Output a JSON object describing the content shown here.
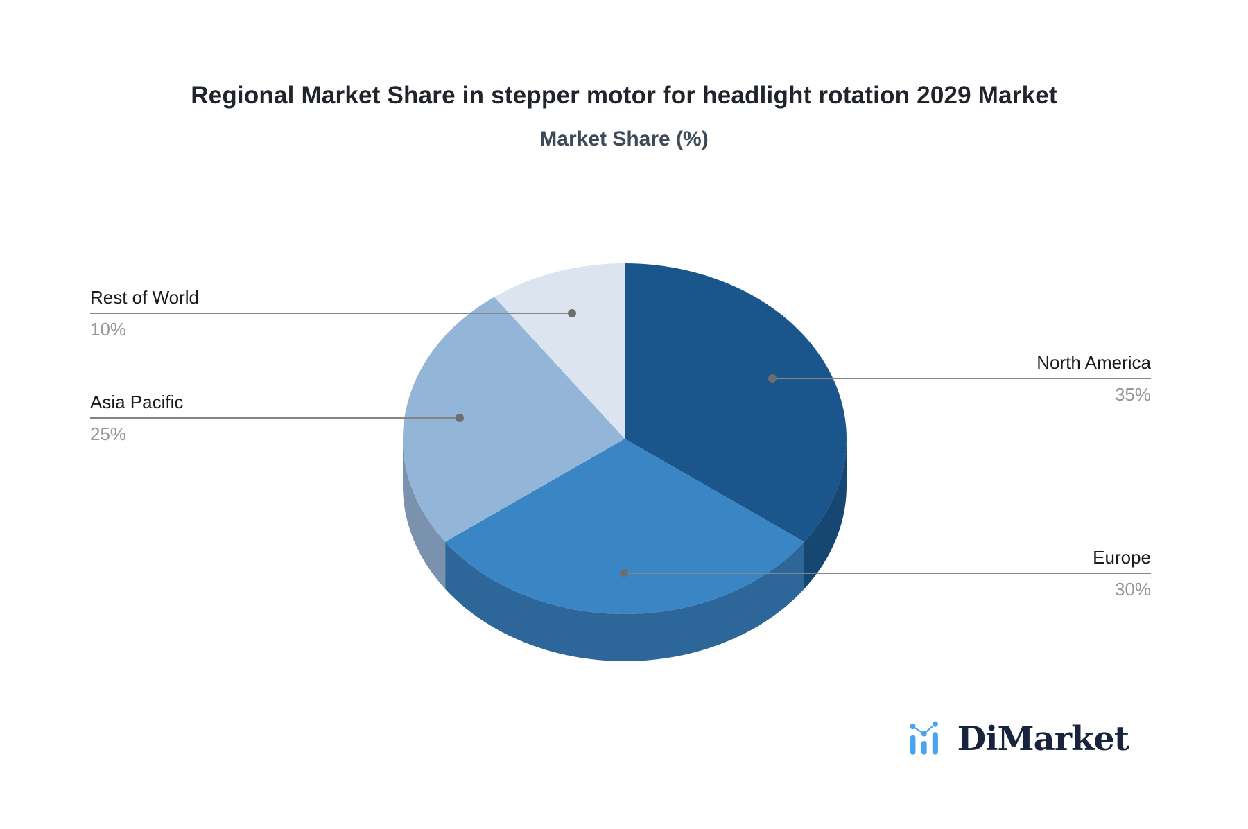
{
  "header": {
    "title": "Regional Market Share in stepper motor for headlight rotation 2029 Market",
    "subtitle": "Market Share (%)",
    "title_color": "#20242b",
    "subtitle_color": "#3d4a58"
  },
  "chart_data": {
    "type": "pie",
    "title": "Regional Market Share in stepper motor for headlight rotation 2029 Market",
    "subtitle": "Market Share (%)",
    "unit": "%",
    "effect": "3d",
    "start_angle_deg": 0,
    "direction": "clockwise",
    "legend_position": "callout-labels",
    "slices": [
      {
        "label": "North America",
        "value": 35,
        "pct_label": "35%",
        "color": "#1a568c",
        "side_color": "#164672"
      },
      {
        "label": "Europe",
        "value": 30,
        "pct_label": "30%",
        "color": "#3a86c5",
        "side_color": "#2d6699"
      },
      {
        "label": "Asia Pacific",
        "value": 25,
        "pct_label": "25%",
        "color": "#92b5d8",
        "side_color": "#7a92ae"
      },
      {
        "label": "Rest of World",
        "value": 10,
        "pct_label": "10%",
        "color": "#dce5ef",
        "side_color": "#c3cfdd"
      }
    ],
    "callout_style": {
      "line_color": "#858585",
      "dot_color": "#6e6e6e",
      "label_color": "#1a1a1a",
      "pct_color": "#969696"
    }
  },
  "branding": {
    "logo_text": "DiMarket",
    "logo_color": "#18233c",
    "icon": "bar-line-chart-icon",
    "icon_color": "#4aa2f2"
  }
}
